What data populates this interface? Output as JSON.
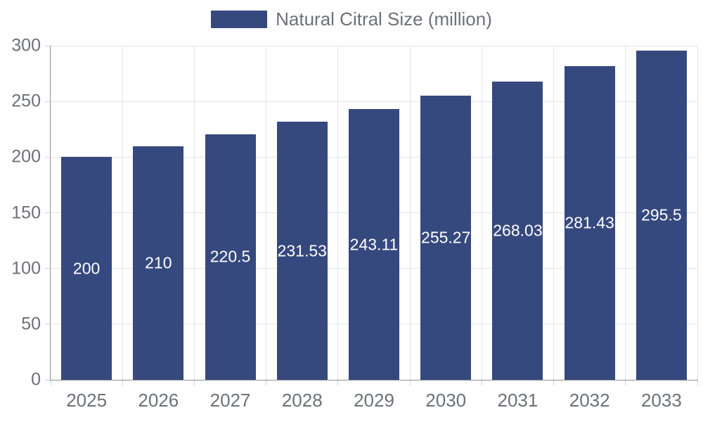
{
  "legend": {
    "label": "Natural Citral Size (million)"
  },
  "chart_data": {
    "type": "bar",
    "title": "",
    "xlabel": "",
    "ylabel": "",
    "categories": [
      "2025",
      "2026",
      "2027",
      "2028",
      "2029",
      "2030",
      "2031",
      "2032",
      "2033"
    ],
    "series": [
      {
        "name": "Natural Citral Size (million)",
        "values": [
          200,
          210,
          220.5,
          231.53,
          243.11,
          255.27,
          268.03,
          281.43,
          295.5
        ]
      }
    ],
    "values": [
      200,
      210,
      220.5,
      231.53,
      243.11,
      255.27,
      268.03,
      281.43,
      295.5
    ],
    "value_labels": [
      "200",
      "210",
      "220.5",
      "231.53",
      "243.11",
      "255.27",
      "268.03",
      "281.43",
      "295.5"
    ],
    "yticks": [
      0,
      50,
      100,
      150,
      200,
      250,
      300
    ],
    "ylim": [
      0,
      300
    ],
    "ytick_step": 50,
    "grid": true,
    "legend_position": "top-center",
    "value_label_position": "inside-center",
    "colors": {
      "bar": "#36497E",
      "bar_value_label": "#FFFFFF",
      "grid_line": "#E2E5EB",
      "axis_line": "#909090",
      "tick_mark": "#CBD2E0",
      "tick_label": "#6E7079",
      "legend_text": "#6E7079",
      "background": "#FFFFFF"
    }
  }
}
